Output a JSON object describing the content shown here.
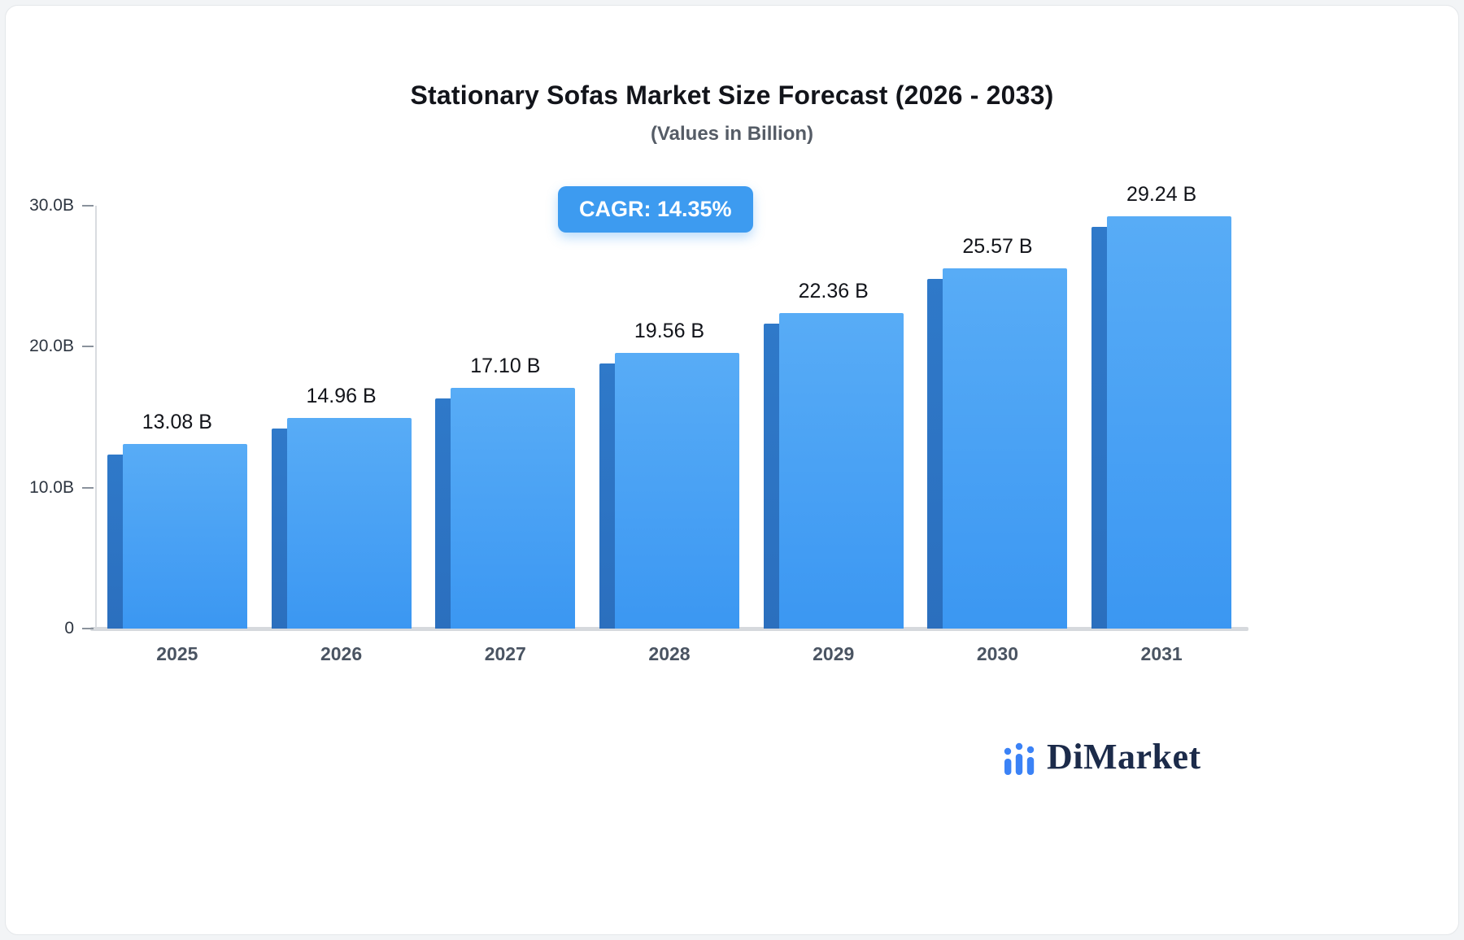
{
  "header": {
    "title": "Stationary Sofas Market Size Forecast (2026 - 2033)",
    "subtitle": "(Values in Billion)",
    "badge": "CAGR: 14.35%"
  },
  "chart_data": {
    "type": "bar",
    "title": "Stationary Sofas Market Size Forecast (2026 - 2033)",
    "subtitle": "(Values in Billion)",
    "cagr_label": "CAGR: 14.35%",
    "categories": [
      "2025",
      "2026",
      "2027",
      "2028",
      "2029",
      "2030",
      "2031"
    ],
    "values": [
      13.08,
      14.96,
      17.1,
      19.56,
      22.36,
      25.57,
      29.24
    ],
    "value_labels": [
      "13.08 B",
      "14.96 B",
      "17.10 B",
      "19.56 B",
      "22.36 B",
      "25.57 B",
      "29.24 B"
    ],
    "xlabel": "",
    "ylabel": "",
    "ylim": [
      0,
      30
    ],
    "y_ticks": [
      {
        "label": "0",
        "value": 0
      },
      {
        "label": "10.0B",
        "value": 10
      },
      {
        "label": "20.0B",
        "value": 20
      },
      {
        "label": "30.0B",
        "value": 30
      }
    ],
    "grid": false,
    "legend": null,
    "bar_color": "#3fa2f7",
    "bar_side_color": "#2d74c4"
  },
  "branding": {
    "logo_text": "DiMarket"
  },
  "colors": {
    "accent": "#3d9bf0",
    "badge_bg": "#3d9bf0",
    "title": "#12141a",
    "subtitle": "#555c66",
    "axis": "#d9dce0"
  }
}
